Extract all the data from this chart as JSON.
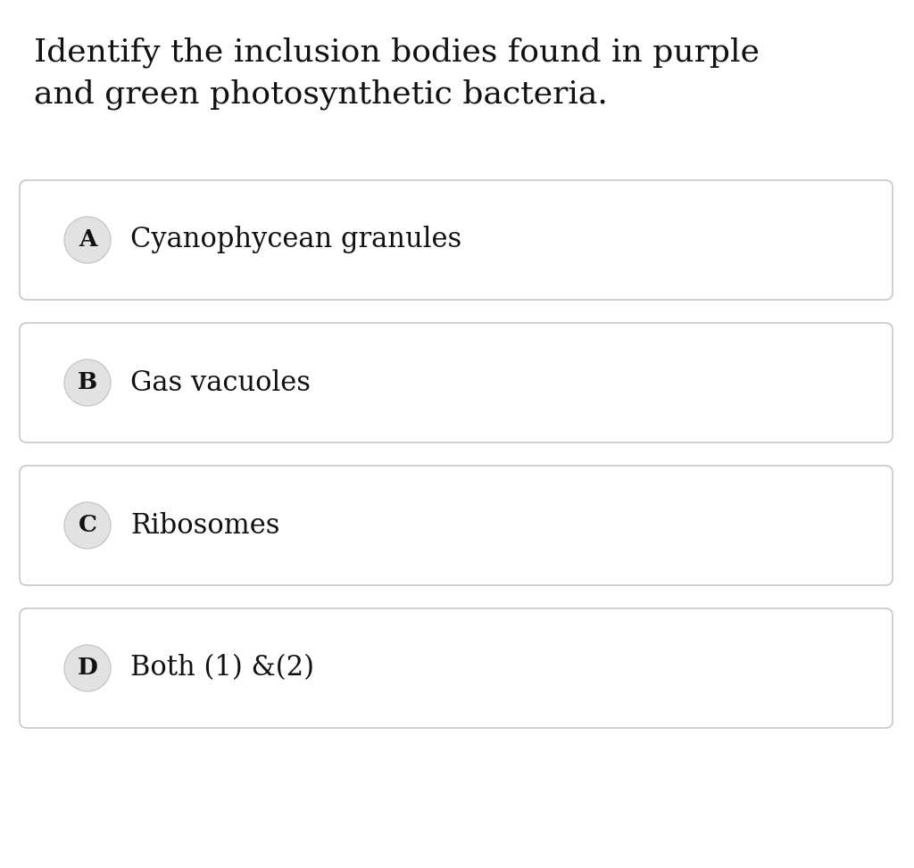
{
  "title_line1": "Identify the inclusion bodies found in purple",
  "title_line2": "and green photosynthetic bacteria.",
  "options": [
    {
      "label": "A",
      "text": "Cyanophycean granules"
    },
    {
      "label": "B",
      "text": "Gas vacuoles"
    },
    {
      "label": "C",
      "text": "Ribosomes"
    },
    {
      "label": "D",
      "text": "Both (1) &(2)"
    }
  ],
  "background_color": "#ffffff",
  "box_fill_color": "#ffffff",
  "box_edge_color": "#c8c8c8",
  "circle_fill_color": "#e2e2e2",
  "circle_edge_color": "#c8c8c8",
  "text_color": "#111111",
  "label_color": "#111111",
  "title_fontsize": 26,
  "option_fontsize": 22,
  "label_fontsize": 19,
  "fig_width": 10.24,
  "fig_height": 9.73
}
